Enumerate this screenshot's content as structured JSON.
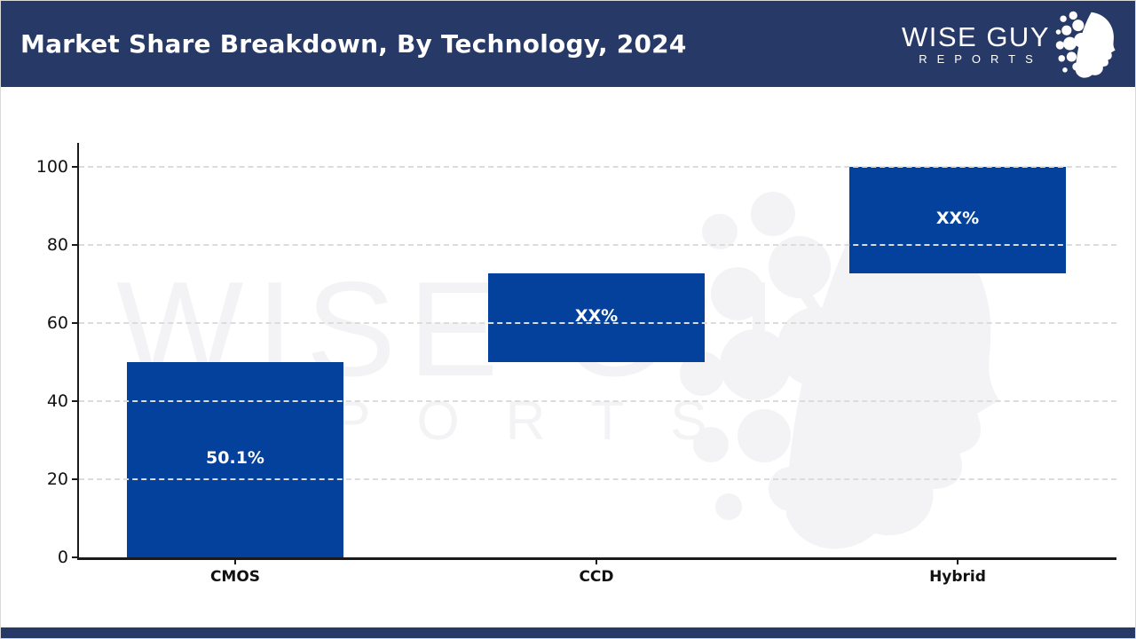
{
  "header": {
    "title": "Market Share Breakdown, By Technology, 2024",
    "logo": {
      "line1": "WISE GUY",
      "line2": "REPORTS"
    }
  },
  "watermark": {
    "line1": "WISE GUY",
    "line2": "REPORTS"
  },
  "chart_data": {
    "type": "bar",
    "subtype": "waterfall-stacked-percentage",
    "title": "Market Share Breakdown, By Technology, 2024",
    "categories": [
      "CMOS",
      "CCD",
      "Hybrid"
    ],
    "series": [
      {
        "name": "Market Share",
        "segments": [
          {
            "category": "CMOS",
            "start": 0,
            "end": 50.1,
            "label": "50.1%"
          },
          {
            "category": "CCD",
            "start": 50.1,
            "end": 72.7,
            "label": "XX%"
          },
          {
            "category": "Hybrid",
            "start": 72.7,
            "end": 100,
            "label": "XX%"
          }
        ]
      }
    ],
    "xlabel": "",
    "ylabel": "",
    "ylim": [
      0,
      106
    ],
    "yticks": [
      0,
      20,
      40,
      60,
      80,
      100
    ],
    "grid": "horizontal-dashed",
    "legend": "none"
  },
  "colors": {
    "header_bg": "#273966",
    "footer_bg": "#273966",
    "bar": "#04419c",
    "bar_label": "#ffffff",
    "grid": "#dcdcdc",
    "axis": "#1a1a1a",
    "watermark": "#f3f3f5",
    "canvas_border": "#d9d9d9"
  }
}
